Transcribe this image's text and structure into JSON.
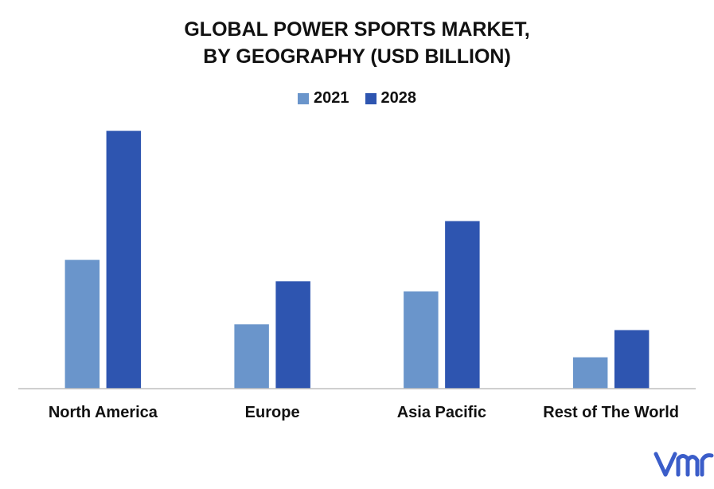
{
  "chart_data": {
    "type": "bar",
    "title_lines": [
      "GLOBAL POWER SPORTS MARKET,",
      "BY GEOGRAPHY (USD BILLION)"
    ],
    "categories": [
      "North America",
      "Europe",
      "Asia Pacific",
      "Rest of The World"
    ],
    "series": [
      {
        "name": "2021",
        "color": "#6a95cb",
        "values": [
          9.0,
          4.5,
          6.8,
          2.2
        ]
      },
      {
        "name": "2028",
        "color": "#2e55b0",
        "values": [
          18.0,
          7.5,
          11.7,
          4.1
        ]
      }
    ],
    "ylim": [
      0,
      20
    ],
    "grid": false,
    "legend_position": "top-center"
  },
  "logo": {
    "text": "vmr",
    "color": "#3b5dc9"
  }
}
